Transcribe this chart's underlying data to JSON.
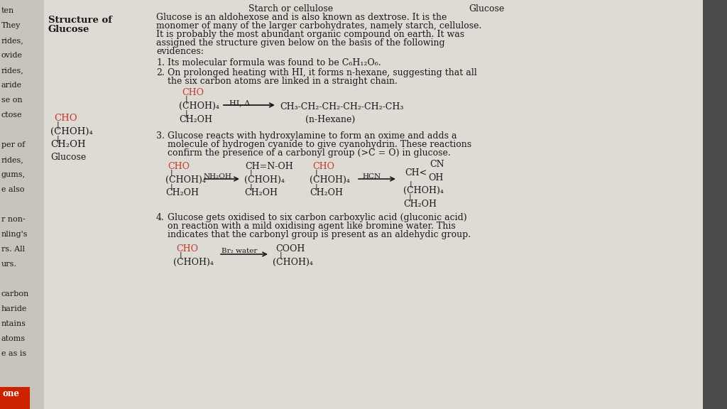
{
  "bg_left": "#c8c4bc",
  "bg_main": "#dedad4",
  "bg_right_dark": "#4a4a4a",
  "red": "#c0392b",
  "dark": "#1a1a1a",
  "sidebar_words": [
    "ten",
    "They",
    "rides,",
    "ovide",
    "rides,",
    "aride",
    "se on",
    "ctose",
    "per of",
    "rides,",
    "gums,",
    "e also",
    "r non-",
    "nling's",
    "rs. All",
    "urs.",
    "carbon",
    "haride",
    "ntains",
    "atoms",
    "e as is"
  ],
  "one_label": "one"
}
